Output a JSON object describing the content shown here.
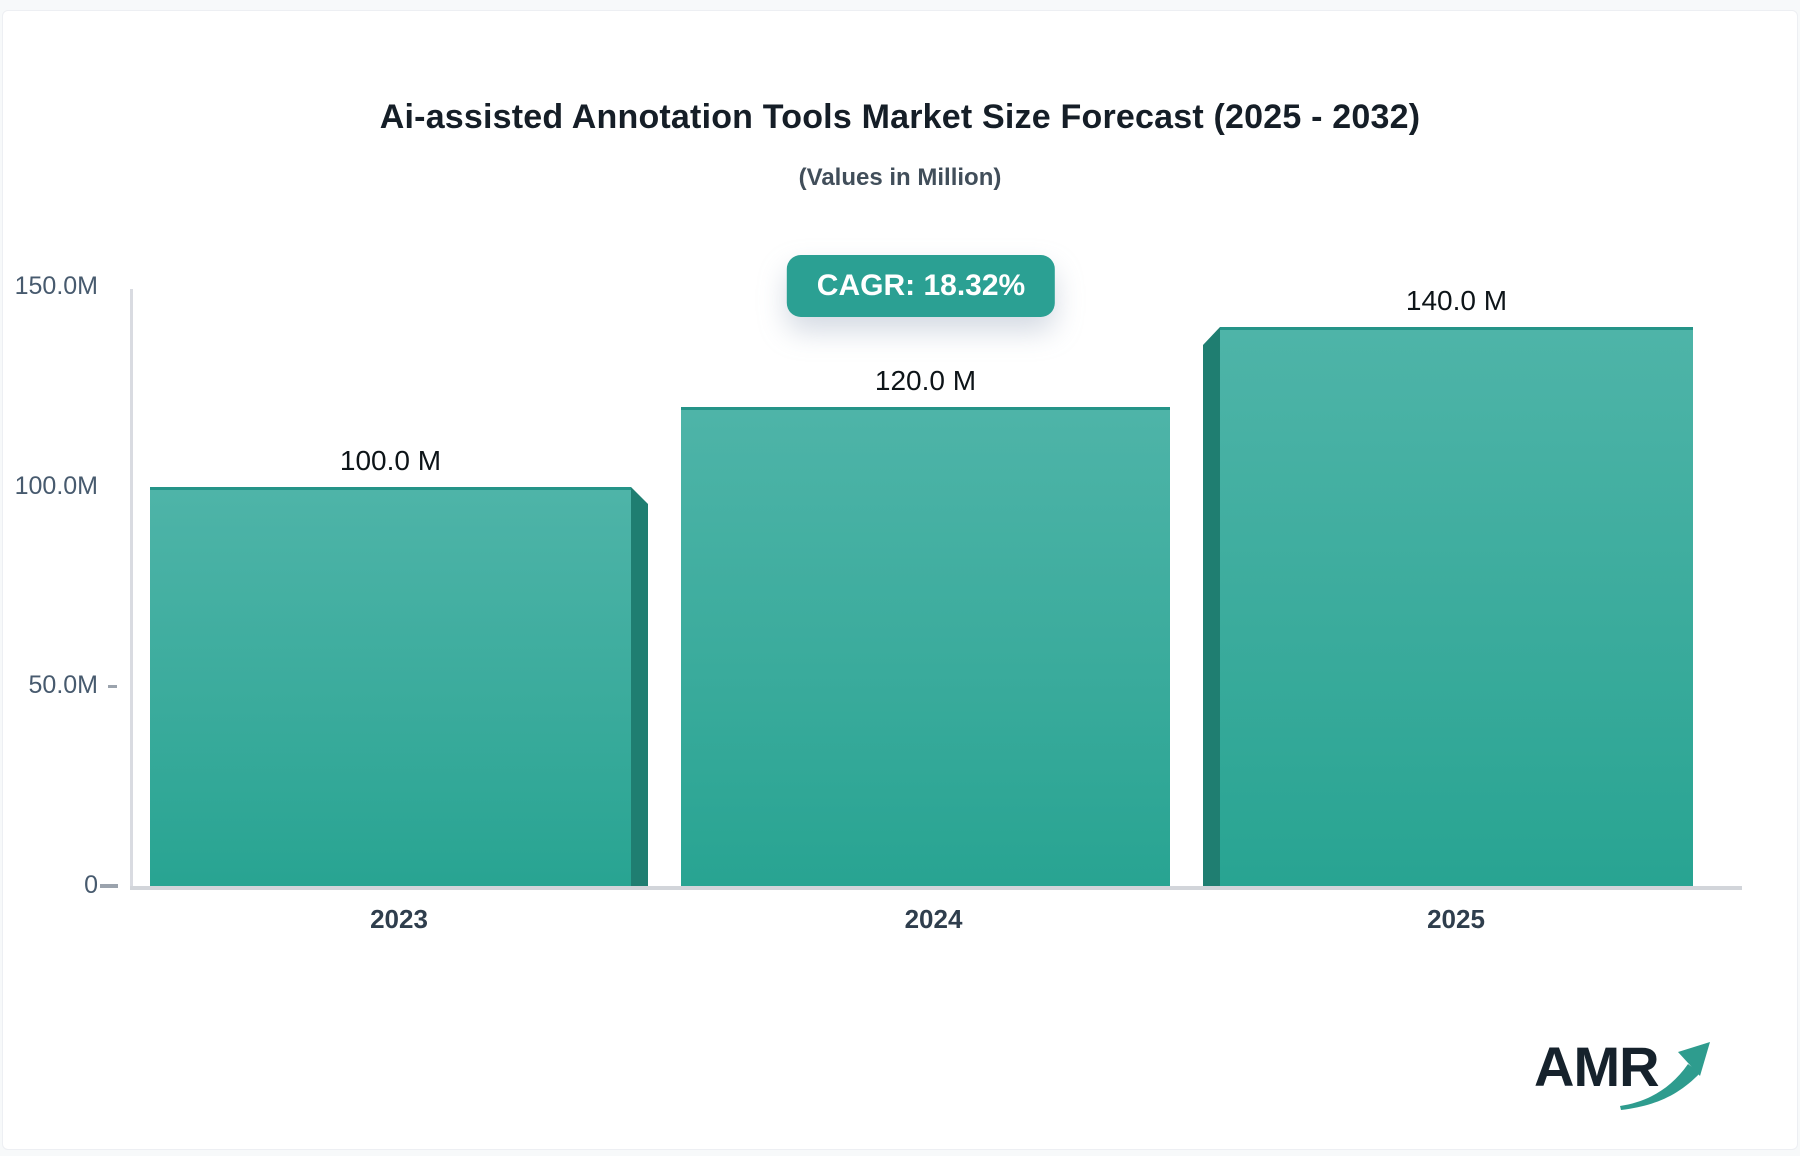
{
  "page": {
    "title": "Ai-assisted Annotation Tools Market Size Forecast (2025 - 2032)",
    "subtitle": "(Values in Million)",
    "cagr_badge": "CAGR: 18.32%",
    "logo_text": "AMR"
  },
  "colors": {
    "bar_gradient_top": "#4eb4a8",
    "bar_gradient_bottom": "#28a492",
    "bar_top_stroke": "#259488",
    "bar_3d_side": "#1f7e71",
    "badge_background": "#2ba093",
    "badge_text": "#ffffff",
    "axis_line": "#d9dbe1",
    "baseline": "#d2d5da",
    "y_label": "#475a6e",
    "x_label": "#2f3e4d",
    "value_label": "#0d1418",
    "title_text": "#151e27",
    "logo_text": "#16222c",
    "logo_arrow": "#2e9c8e"
  },
  "chart_data": {
    "type": "bar",
    "title": "Ai-assisted Annotation Tools Market Size Forecast (2025 - 2032)",
    "subtitle": "(Values in Million)",
    "annotation": "CAGR: 18.32%",
    "categories": [
      "2023",
      "2024",
      "2025"
    ],
    "values": [
      100,
      120,
      140
    ],
    "value_labels": [
      "100.0 M",
      "120.0 M",
      "140.0 M"
    ],
    "unit": "Million",
    "ylim": [
      0,
      150
    ],
    "y_ticks": [
      {
        "value": 150,
        "label": "150.0M"
      },
      {
        "value": 100,
        "label": "100.0M"
      },
      {
        "value": 50,
        "label": "50.0M"
      },
      {
        "value": 0,
        "label": "0"
      }
    ],
    "grid": false,
    "legend": "none",
    "bar_3d_sides": [
      "right",
      "none",
      "left"
    ]
  }
}
